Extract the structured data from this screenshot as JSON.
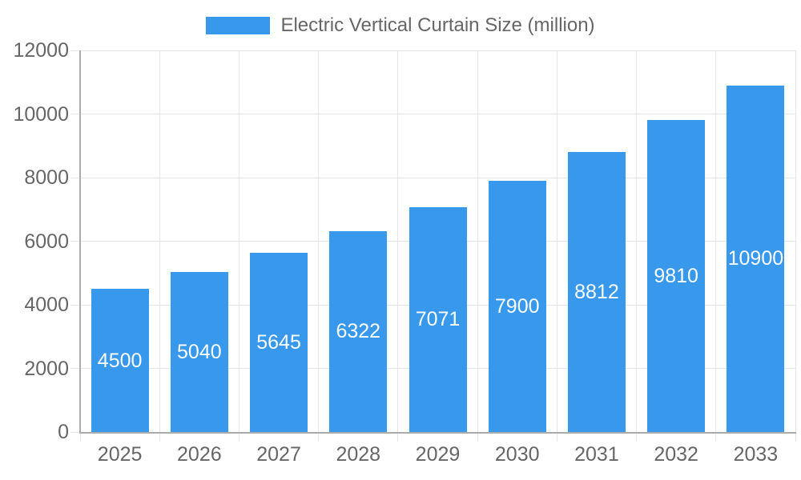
{
  "chart_data": {
    "type": "bar",
    "title": "Electric Vertical Curtain Size (million)",
    "legend_position": "top",
    "categories": [
      "2025",
      "2026",
      "2027",
      "2028",
      "2029",
      "2030",
      "2031",
      "2032",
      "2033"
    ],
    "values": [
      4500,
      5040,
      5645,
      6322,
      7071,
      7900,
      8812,
      9810,
      10900
    ],
    "xlabel": "",
    "ylabel": "",
    "ylim": [
      0,
      12000
    ],
    "yticks": [
      0,
      2000,
      4000,
      6000,
      8000,
      10000,
      12000
    ],
    "grid": true,
    "bar_labels_inside": true,
    "colors": {
      "bar": "#3898ec",
      "bar_label": "#ffffff",
      "axis_text": "#666666",
      "gridline": "#e6e6e6",
      "axis_line": "#aaaaaa",
      "background": "#ffffff"
    }
  }
}
